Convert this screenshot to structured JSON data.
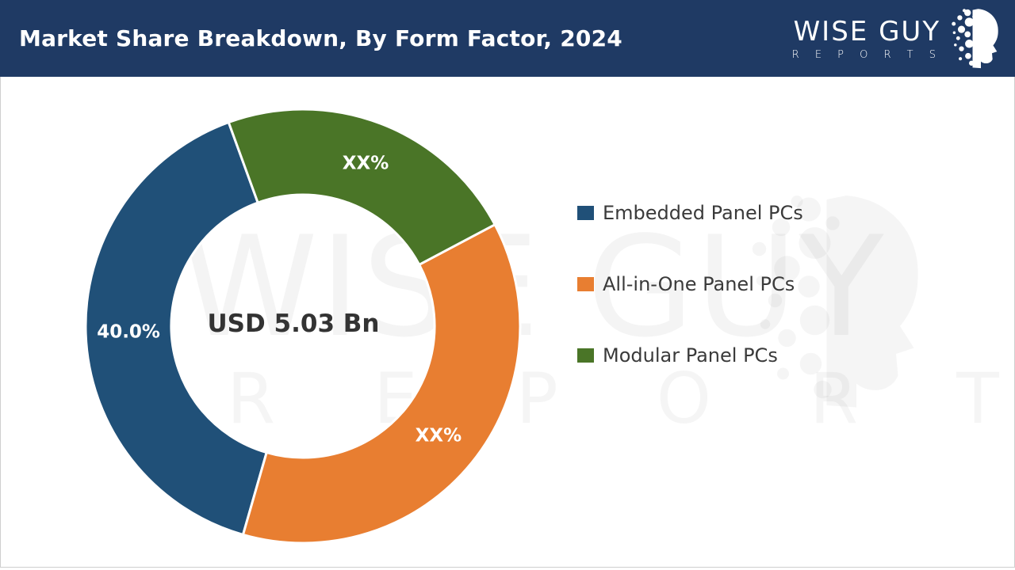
{
  "header": {
    "title": "Market Share Breakdown, By Form Factor, 2024",
    "logo_line1": "WISE GUY",
    "logo_line2": "R E P O R T S"
  },
  "colors": {
    "header_bg": "#1f3a64",
    "frame_border": "#cfcfcf",
    "slice_blue": "#205078",
    "slice_orange": "#e87e31",
    "slice_green": "#4a7527",
    "center_text": "#333333",
    "legend_text": "#3a3a3a"
  },
  "watermark": {
    "line1": "WISE GUY",
    "line2": "R E P O R T S"
  },
  "chart_data": {
    "type": "pie",
    "subtype": "donut",
    "title": "Market Share Breakdown, By Form Factor, 2024",
    "center_label": "USD 5.03 Bn",
    "start_angle_deg": 110,
    "direction": "counterclockwise",
    "hole_ratio": 0.6,
    "legend_position": "right",
    "segments": [
      {
        "name": "Embedded Panel PCs",
        "value_pct": 40.0,
        "label": "40.0%",
        "color": "#205078"
      },
      {
        "name": "All-in-One Panel PCs",
        "value_pct": 37.2,
        "label": "XX%",
        "color": "#e87e31"
      },
      {
        "name": "Modular Panel PCs",
        "value_pct": 22.8,
        "label": "XX%",
        "color": "#4a7527"
      }
    ]
  }
}
